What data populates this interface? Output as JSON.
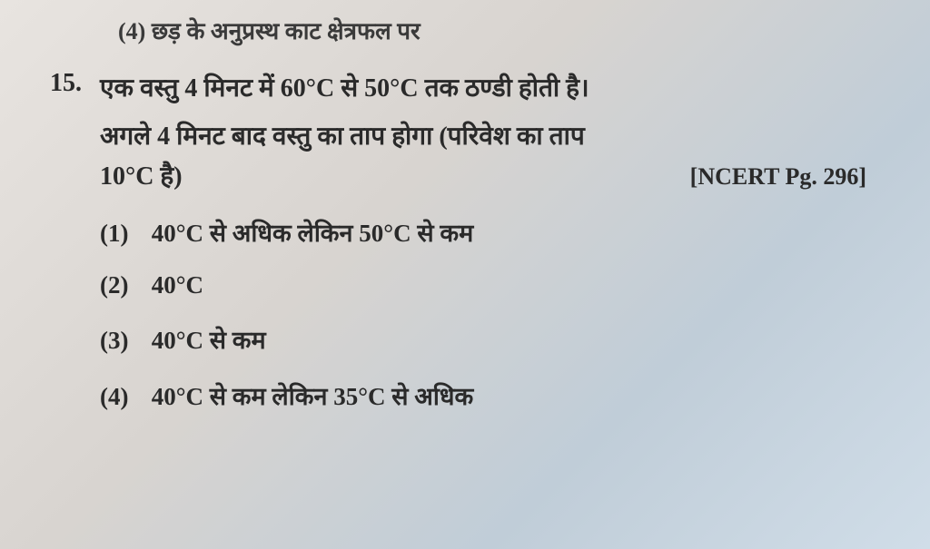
{
  "prev_question": {
    "option4": {
      "label": "(4)",
      "text": "छड़ के अनुप्रस्थ काट क्षेत्रफल पर"
    }
  },
  "question": {
    "number": "15.",
    "line1": "एक वस्तु 4 मिनट में 60°C से 50°C तक ठण्डी होती है।",
    "line2": "अगले 4 मिनट बाद वस्तु का ताप होगा (परिवेश का ताप",
    "line3": "10°C है)",
    "reference": "[NCERT Pg. 296]"
  },
  "options": {
    "opt1": {
      "label": "(1)",
      "text": "40°C से अधिक लेकिन 50°C से कम"
    },
    "opt2": {
      "label": "(2)",
      "text": "40°C"
    },
    "opt3": {
      "label": "(3)",
      "text": "40°C से कम"
    },
    "opt4": {
      "label": "(4)",
      "text": "40°C से कम लेकिन 35°C से अधिक"
    }
  }
}
